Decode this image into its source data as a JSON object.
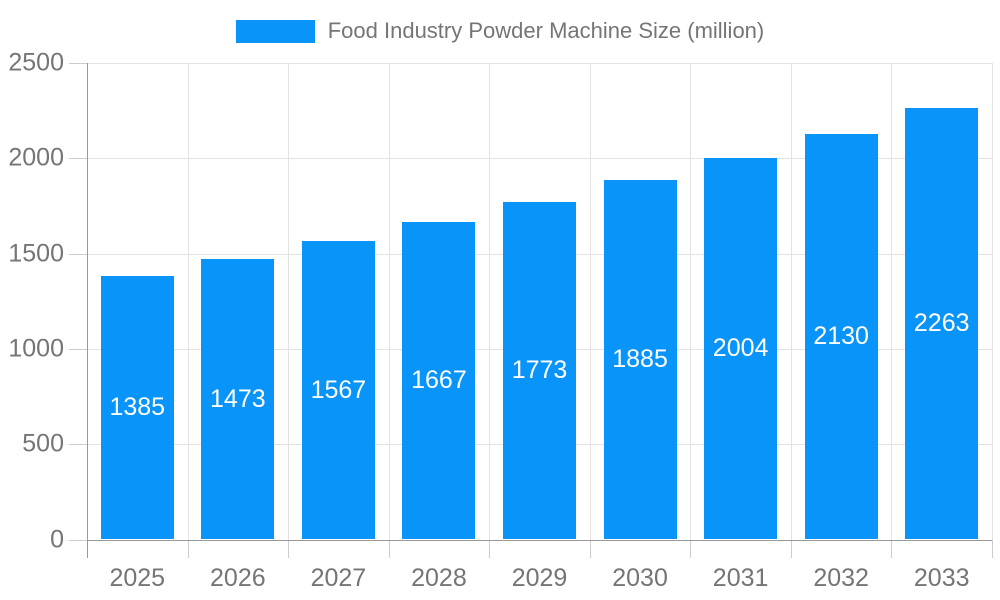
{
  "legend": {
    "title": "Food Industry Powder Machine Size (million)"
  },
  "chart_data": {
    "type": "bar",
    "title": "Food Industry Powder Machine Size (million)",
    "categories": [
      "2025",
      "2026",
      "2027",
      "2028",
      "2029",
      "2030",
      "2031",
      "2032",
      "2033"
    ],
    "values": [
      1385,
      1473,
      1567,
      1667,
      1773,
      1885,
      2004,
      2130,
      2263
    ],
    "series": [
      {
        "name": "Food Industry Powder Machine Size (million)",
        "values": [
          1385,
          1473,
          1567,
          1667,
          1773,
          1885,
          2004,
          2130,
          2263
        ]
      }
    ],
    "xlabel": "",
    "ylabel": "",
    "ylim": [
      0,
      2500
    ],
    "yticks": [
      0,
      500,
      1000,
      1500,
      2000,
      2500
    ],
    "grid": true,
    "legend_position": "top",
    "bar_label_position": "center-inside",
    "colors": {
      "bar": "#0994FA",
      "bar_label": "#FFFFFF",
      "axis_text": "#757575",
      "grid_line": "#E3E3E3",
      "tick_line": "#CCCCCC",
      "axis_line": "#999999",
      "background": "#FFFFFF"
    }
  }
}
